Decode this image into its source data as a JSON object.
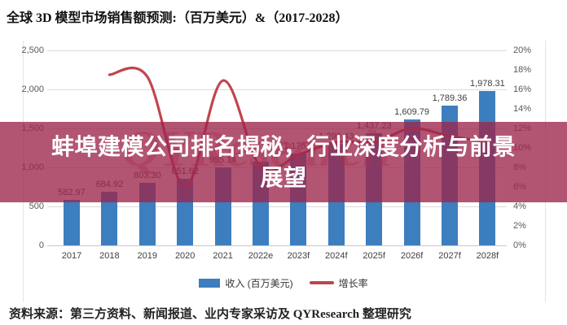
{
  "title": "全球 3D 模型市场销售额预测:（百万美元）&（2017-2028）",
  "footer": "资料来源：第三方资料、新闻报道、业内专家采访及 QYResearch 整理研究",
  "overlay": {
    "line1": "蚌埠建模公司排名揭秘，行业深度分析与前景",
    "line2": "展望",
    "background": "rgba(156,37,76,0.78)",
    "text_color": "#ffffff"
  },
  "watermark": {
    "text": "QYResearch",
    "color": "rgba(205,105,105,0.45)"
  },
  "legend": [
    {
      "label": "收入 (百万美元)",
      "type": "bar",
      "color": "#3D7EBE"
    },
    {
      "label": "增长率",
      "type": "line",
      "color": "#C0464D"
    }
  ],
  "chart_data": {
    "type": "bar",
    "subtype": "combo-bar-line",
    "title": "全球 3D 模型市场销售额预测:（百万美元）&（2017-2028）",
    "categories": [
      "2017",
      "2018",
      "2019",
      "2020",
      "2021",
      "2022e",
      "2023f",
      "2024f",
      "2025f",
      "2026f",
      "2027f",
      "2028f"
    ],
    "series": [
      {
        "name": "收入 (百万美元)",
        "type": "bar",
        "axis": "left",
        "color": "#3D7EBE",
        "values": [
          582.97,
          684.92,
          803.3,
          851.62,
          995.14,
          1074.9,
          1175.4,
          1299.43,
          1437.23,
          1609.79,
          1789.36,
          1978.31
        ],
        "labels": [
          "582.97",
          "684.92",
          "803.30",
          "851.62",
          "995.14",
          "",
          "1,175.4",
          "1,299.43",
          "1,437.23",
          "1,609.79",
          "1,789.36",
          "1,978.31"
        ]
      },
      {
        "name": "增长率",
        "type": "line",
        "axis": "right",
        "color": "#C0464D",
        "values": [
          null,
          17.5,
          17.3,
          6.0,
          16.9,
          8.0,
          9.3,
          10.6,
          10.6,
          12.0,
          11.2,
          10.6
        ]
      }
    ],
    "left_axis": {
      "min": 0,
      "max": 2500,
      "step": 500,
      "ticks": [
        "2,500",
        "2,000",
        "1,500",
        "1,000",
        "500",
        "0"
      ]
    },
    "right_axis": {
      "min": 0,
      "max": 20,
      "step": 2,
      "ticks": [
        "20%",
        "18%",
        "16%",
        "14%",
        "12%",
        "10%",
        "8%",
        "6%",
        "4%",
        "2%",
        "0%"
      ]
    },
    "grid": true,
    "legend_position": "bottom"
  }
}
